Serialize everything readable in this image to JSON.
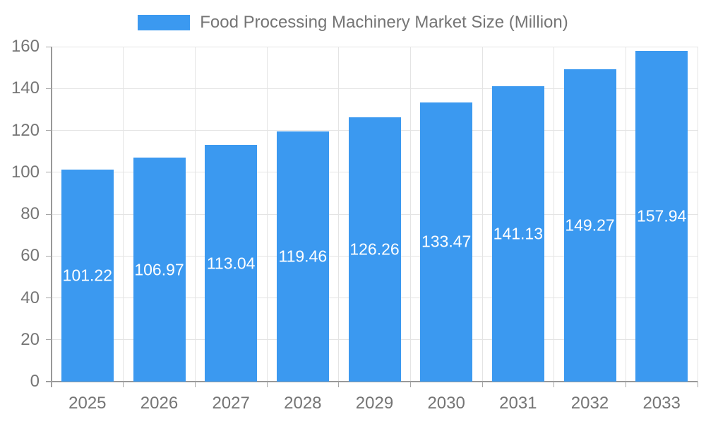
{
  "legend": {
    "label": "Food Processing Machinery Market Size (Million)"
  },
  "colors": {
    "bar": "#3b99f0",
    "grid": "#e4e4e4",
    "axis": "#999999",
    "tick": "#a6a6a6",
    "tick_label": "#757575",
    "legend_text": "#757575",
    "value_label": "#ffffff",
    "background": "#ffffff"
  },
  "chart_data": {
    "type": "bar",
    "title": "Food Processing Machinery Market Size (Million)",
    "series_name": "Food Processing Machinery Market Size (Million)",
    "categories": [
      "2025",
      "2026",
      "2027",
      "2028",
      "2029",
      "2030",
      "2031",
      "2032",
      "2033"
    ],
    "values": [
      101.22,
      106.97,
      113.04,
      119.46,
      126.26,
      133.47,
      141.13,
      149.27,
      157.94
    ],
    "value_labels": [
      "101.22",
      "106.97",
      "113.04",
      "119.46",
      "126.26",
      "133.47",
      "141.13",
      "149.27",
      "157.94"
    ],
    "xlabel": "",
    "ylabel": "",
    "ylim": [
      0,
      160
    ],
    "yticks": [
      0,
      20,
      40,
      60,
      80,
      100,
      120,
      140,
      160
    ],
    "grid": true,
    "value_label_position": "inside-center",
    "legend_position": "top-center"
  }
}
